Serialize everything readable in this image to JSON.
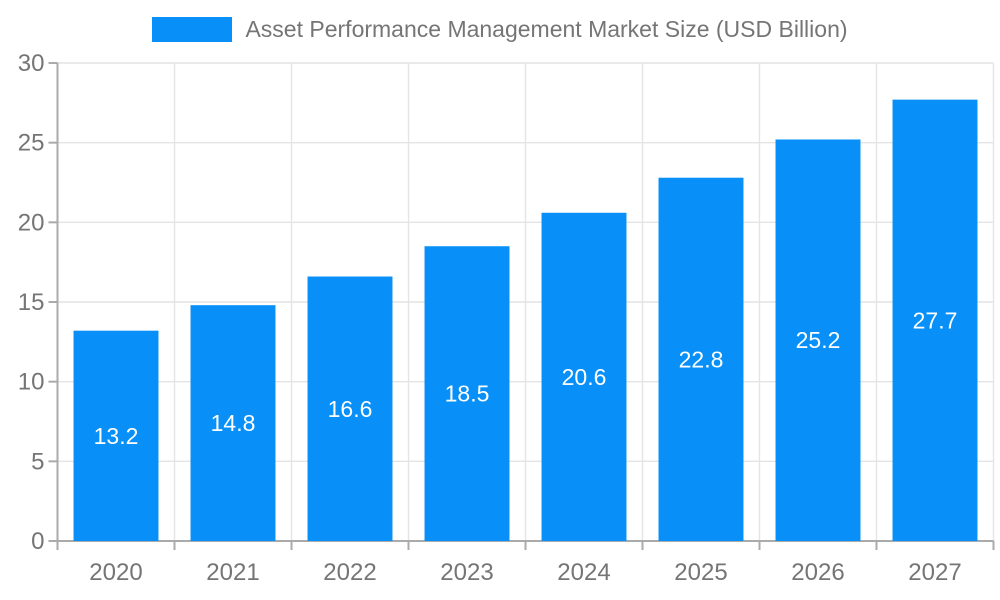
{
  "chart_data": {
    "type": "bar",
    "title": "Asset Performance Management Market Size (USD Billion)",
    "categories": [
      "2020",
      "2021",
      "2022",
      "2023",
      "2024",
      "2025",
      "2026",
      "2027"
    ],
    "values": [
      13.2,
      14.8,
      16.6,
      18.5,
      20.6,
      22.8,
      25.2,
      27.7
    ],
    "xlabel": "",
    "ylabel": "",
    "ylim": [
      0,
      30
    ],
    "ytick_step": 5,
    "yticks": [
      "0",
      "5",
      "10",
      "15",
      "20",
      "25",
      "30"
    ],
    "grid": true,
    "legend_position": "top-center",
    "value_label_position": "inside-center",
    "colors": {
      "bar": "#0890f8",
      "value_label": "#ffffff",
      "axis": "#ababab",
      "grid": "#e4e4e4",
      "tick_text": "#757575",
      "legend_text": "#757575",
      "background": "#ffffff"
    }
  }
}
